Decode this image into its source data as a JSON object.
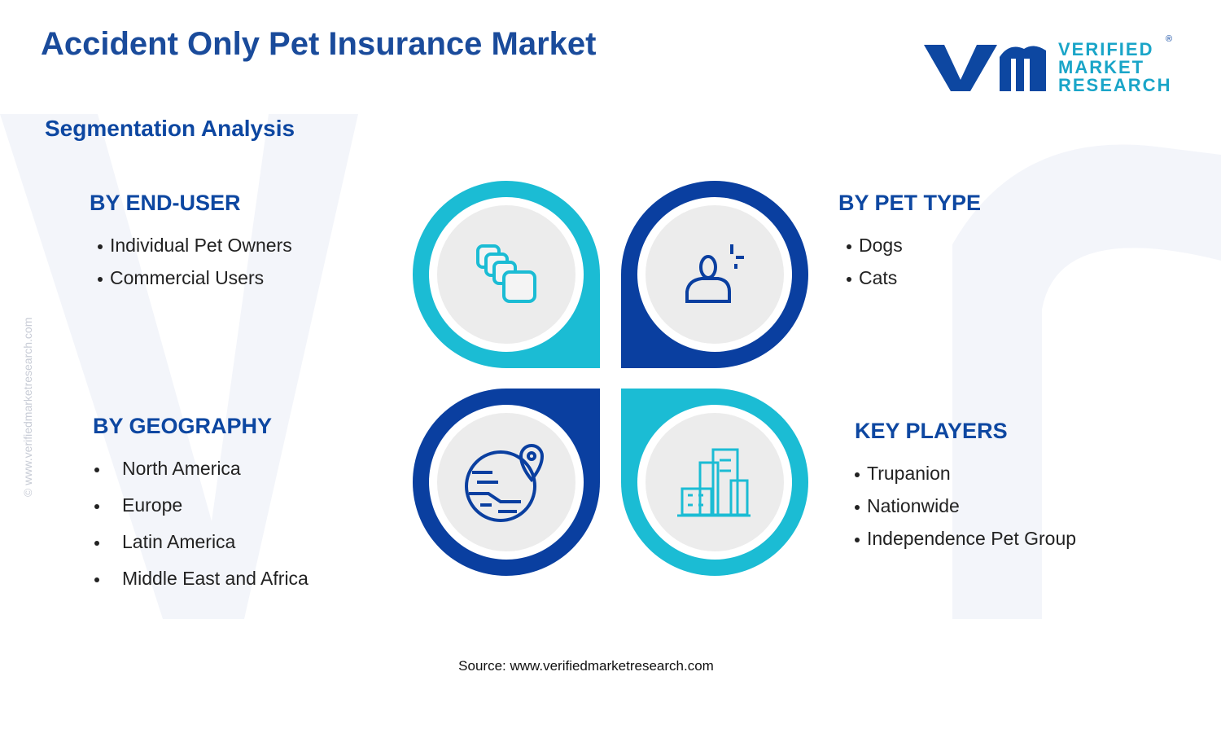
{
  "header": {
    "title": "Accident Only Pet Insurance Market",
    "subtitle": "Segmentation Analysis"
  },
  "logo": {
    "lines": [
      "VERIFIED",
      "MARKET",
      "RESEARCH"
    ],
    "mark": "®"
  },
  "watermark": "© www.verifiedmarketresearch.com",
  "segments": [
    {
      "heading": "BY END-USER",
      "items": [
        "Individual Pet Owners",
        "Commercial Users"
      ]
    },
    {
      "heading": "BY PET TYPE",
      "items": [
        "Dogs",
        "Cats"
      ]
    },
    {
      "heading": "BY GEOGRAPHY",
      "items": [
        "North America",
        "Europe",
        "Latin America",
        "Middle East and Africa"
      ]
    },
    {
      "heading": "KEY PLAYERS",
      "items": [
        "Trupanion",
        "Nationwide",
        "Independence Pet Group"
      ]
    }
  ],
  "source": "Source: www.verifiedmarketresearch.com"
}
